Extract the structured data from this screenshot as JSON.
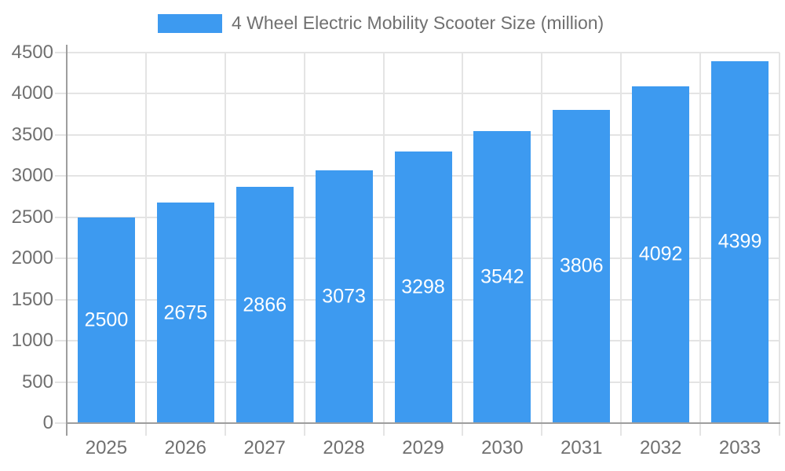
{
  "legend": {
    "label": "4 Wheel Electric Mobility Scooter Size (million)"
  },
  "colors": {
    "bar": "#3D9AF0",
    "grid_line": "#E4E4E4",
    "axis_line": "#9E9E9E",
    "axis_text": "#707070",
    "value_label_text": "#FFFFFF",
    "background": "#FFFFFF"
  },
  "chart_data": {
    "type": "bar",
    "title": "4 Wheel Electric Mobility Scooter Size (million)",
    "categories": [
      "2025",
      "2026",
      "2027",
      "2028",
      "2029",
      "2030",
      "2031",
      "2032",
      "2033"
    ],
    "values": [
      2500,
      2675,
      2866,
      3073,
      3298,
      3542,
      3806,
      4092,
      4399
    ],
    "series_name": "4 Wheel Electric Mobility Scooter Size (million)",
    "xlabel": "",
    "ylabel": "",
    "ylim": [
      0,
      4500
    ],
    "yticks": [
      0,
      500,
      1000,
      1500,
      2000,
      2500,
      3000,
      3500,
      4000,
      4500
    ],
    "grid": true,
    "legend_position": "top",
    "bar_label_position": "inside-center"
  }
}
